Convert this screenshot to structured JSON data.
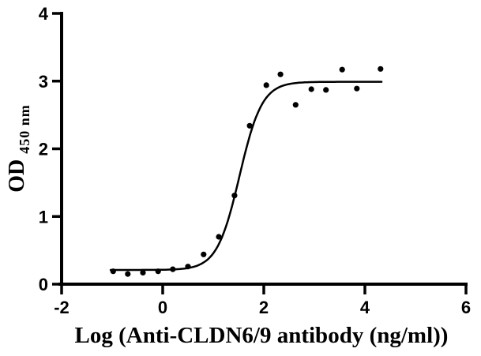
{
  "chart_data": {
    "type": "scatter",
    "subtype": "sigmoidal-dose-response-fit",
    "title": "",
    "xlabel": "Log (Anti-CLDN6/9 antibody (ng/ml))",
    "ylabel_main": "OD",
    "ylabel_sub": "450 nm",
    "xlim": [
      -2,
      6
    ],
    "ylim": [
      0,
      4
    ],
    "xticks": [
      -2,
      0,
      2,
      4,
      6
    ],
    "yticks": [
      0,
      1,
      2,
      3,
      4
    ],
    "grid": false,
    "legend_position": "none",
    "background_color": "#ffffff",
    "axis_color": "#000000",
    "marker_color": "#000000",
    "line_color": "#000000",
    "points": [
      [
        -0.98,
        0.19
      ],
      [
        -0.69,
        0.15
      ],
      [
        -0.39,
        0.17
      ],
      [
        -0.09,
        0.19
      ],
      [
        0.2,
        0.22
      ],
      [
        0.5,
        0.26
      ],
      [
        0.81,
        0.44
      ],
      [
        1.11,
        0.7
      ],
      [
        1.42,
        1.31
      ],
      [
        1.72,
        2.34
      ],
      [
        2.05,
        2.94
      ],
      [
        2.33,
        3.1
      ],
      [
        2.63,
        2.65
      ],
      [
        2.94,
        2.88
      ],
      [
        3.23,
        2.87
      ],
      [
        3.55,
        3.17
      ],
      [
        3.84,
        2.89
      ],
      [
        4.31,
        3.18
      ]
    ],
    "fit_curve": {
      "model": "4PL",
      "bottom": 0.21,
      "top": 2.99,
      "logEC50": 1.52,
      "hillslope": 1.95,
      "x_start": -1.03,
      "x_end": 4.33
    }
  }
}
